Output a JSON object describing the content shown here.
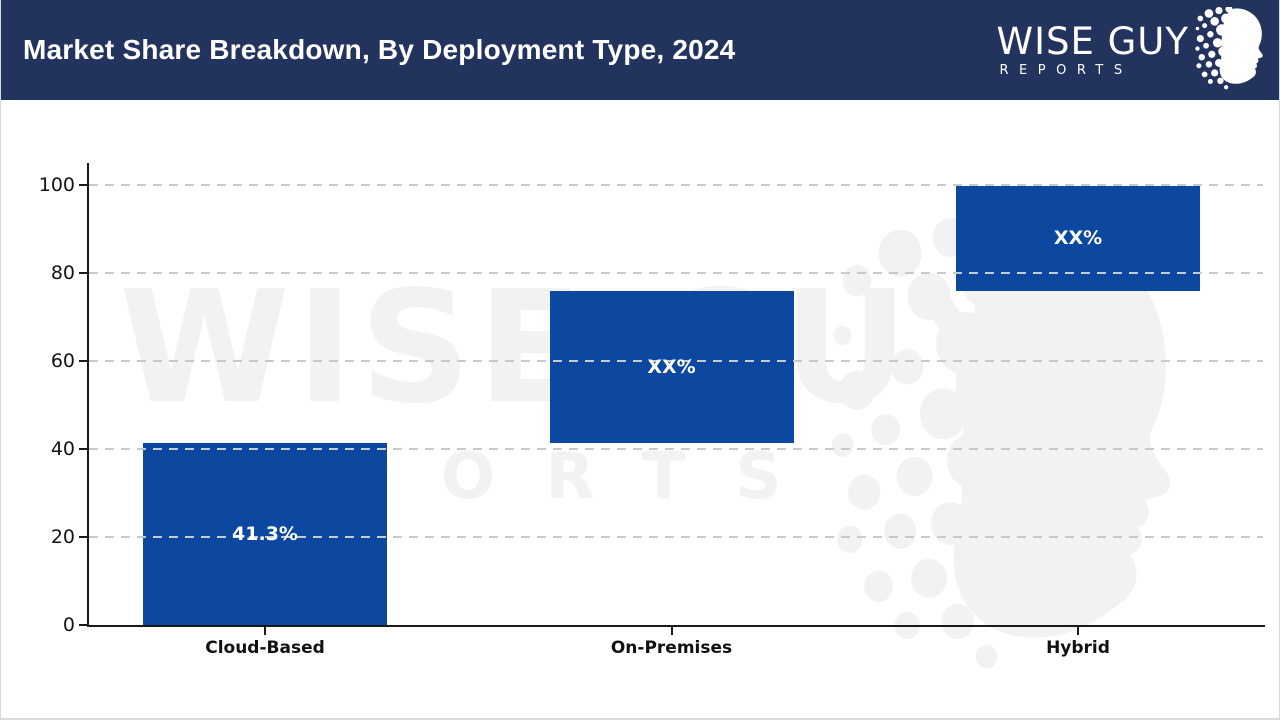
{
  "header": {
    "title": "Market Share Breakdown, By Deployment Type, 2024",
    "bg_color": "#22335E",
    "logo": {
      "line1": "WISE GUY",
      "line2": "REPORTS"
    }
  },
  "watermark": {
    "line1": "WISE GUY",
    "line2": "REPORTS"
  },
  "chart_data": {
    "type": "bar",
    "subtype": "floating-segment-waterfall",
    "title": "Market Share Breakdown, By Deployment Type, 2024",
    "categories": [
      "Cloud-Based",
      "On-Premises",
      "Hybrid"
    ],
    "segments": [
      {
        "category": "Cloud-Based",
        "start": 0,
        "end": 41.3,
        "label": "41.3%"
      },
      {
        "category": "On-Premises",
        "start": 41.3,
        "end": 76.0,
        "label": "XX%"
      },
      {
        "category": "Hybrid",
        "start": 76.0,
        "end": 99.8,
        "label": "XX%"
      }
    ],
    "yticks": [
      0,
      20,
      40,
      60,
      80,
      100
    ],
    "ylim": [
      0,
      105
    ],
    "xlabel": "",
    "ylabel": "",
    "grid": "horizontal-dashed",
    "grid_color": "#c9c9c9",
    "bar_color": "#0C47A0",
    "axis_color": "#1a1a1a",
    "value_label_color": "#ffffff",
    "legend": false
  }
}
